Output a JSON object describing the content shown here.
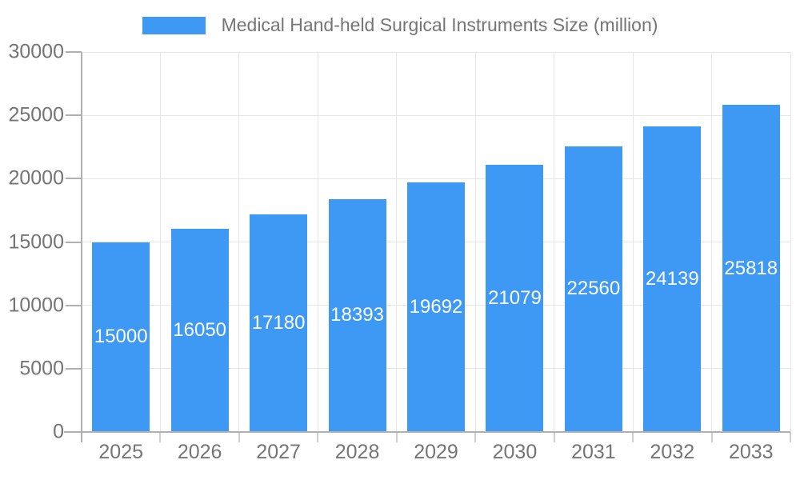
{
  "legend": {
    "label": "Medical Hand-held Surgical Instruments Size (million)"
  },
  "chart_data": {
    "type": "bar",
    "title": "Medical Hand-held Surgical Instruments Size (million)",
    "series": [
      {
        "name": "Medical Hand-held Surgical Instruments Size (million)",
        "values": [
          15000,
          16050,
          17180,
          18393,
          19692,
          21079,
          22560,
          24139,
          25818
        ]
      }
    ],
    "categories": [
      "2025",
      "2026",
      "2027",
      "2028",
      "2029",
      "2030",
      "2031",
      "2032",
      "2033"
    ],
    "values": [
      15000,
      16050,
      17180,
      18393,
      19692,
      21079,
      22560,
      24139,
      25818
    ],
    "bar_value_labels": [
      "15000",
      "16050",
      "17180",
      "18393",
      "19692",
      "21079",
      "22560",
      "24139",
      "25818"
    ],
    "xlabel": "",
    "ylabel": "",
    "ylim": [
      0,
      30000
    ],
    "yticks": [
      0,
      5000,
      10000,
      15000,
      20000,
      25000,
      30000
    ],
    "grid": true,
    "legend_position": "top",
    "colors": {
      "bar": "#3d99f4",
      "bar_label": "#ffffff",
      "axis_text": "#757575",
      "gridline": "#e6e6e6",
      "axis_line": "#b0b0b0",
      "tick_mark": "#cfcfcf"
    }
  }
}
